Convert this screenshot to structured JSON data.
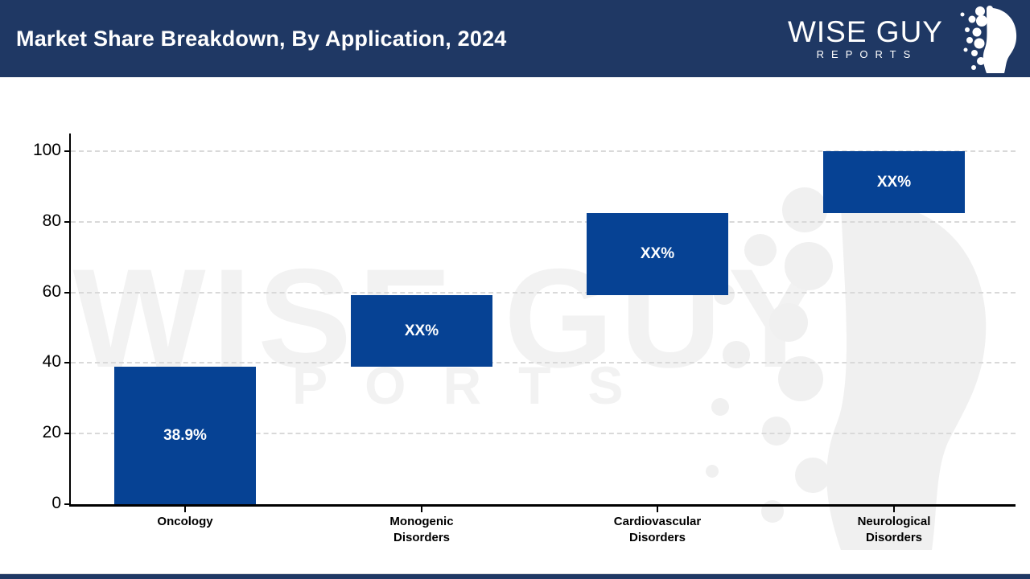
{
  "header": {
    "title": "Market Share Breakdown, By Application, 2024",
    "logo": {
      "line1": "WISE GUY",
      "line2": "REPORTS"
    }
  },
  "watermark": {
    "line1": "WISE GUY",
    "line2": "REPORTS"
  },
  "colors": {
    "header_bg": "#1f3864",
    "bar": "#064294",
    "gridline": "#d9d9d9",
    "watermark": "#f2f2f2",
    "bar_label": "#ffffff"
  },
  "chart_data": {
    "type": "bar",
    "subtype": "waterfall",
    "title": "Market Share Breakdown, By Application, 2024",
    "xlabel": "",
    "ylabel": "",
    "ylim": [
      0,
      105
    ],
    "yticks": [
      0,
      20,
      40,
      60,
      80,
      100
    ],
    "grid": "horizontal-dashed",
    "legend": "none",
    "categories": [
      "Oncology",
      "Monogenic Disorders",
      "Cardiovascular Disorders",
      "Neurological Disorders"
    ],
    "category_label_lines": [
      [
        "Oncology"
      ],
      [
        "Monogenic",
        "Disorders"
      ],
      [
        "Cardiovascular",
        "Disorders"
      ],
      [
        "Neurological",
        "Disorders"
      ]
    ],
    "values": [
      38.9,
      20.3,
      23.2,
      17.6
    ],
    "segments": [
      {
        "category": "Oncology",
        "start": 0,
        "end": 38.9,
        "label": "38.9%"
      },
      {
        "category": "Monogenic Disorders",
        "start": 38.9,
        "end": 59.2,
        "label": "XX%"
      },
      {
        "category": "Cardiovascular Disorders",
        "start": 59.2,
        "end": 82.4,
        "label": "XX%"
      },
      {
        "category": "Neurological Disorders",
        "start": 82.4,
        "end": 100,
        "label": "XX%"
      }
    ]
  }
}
